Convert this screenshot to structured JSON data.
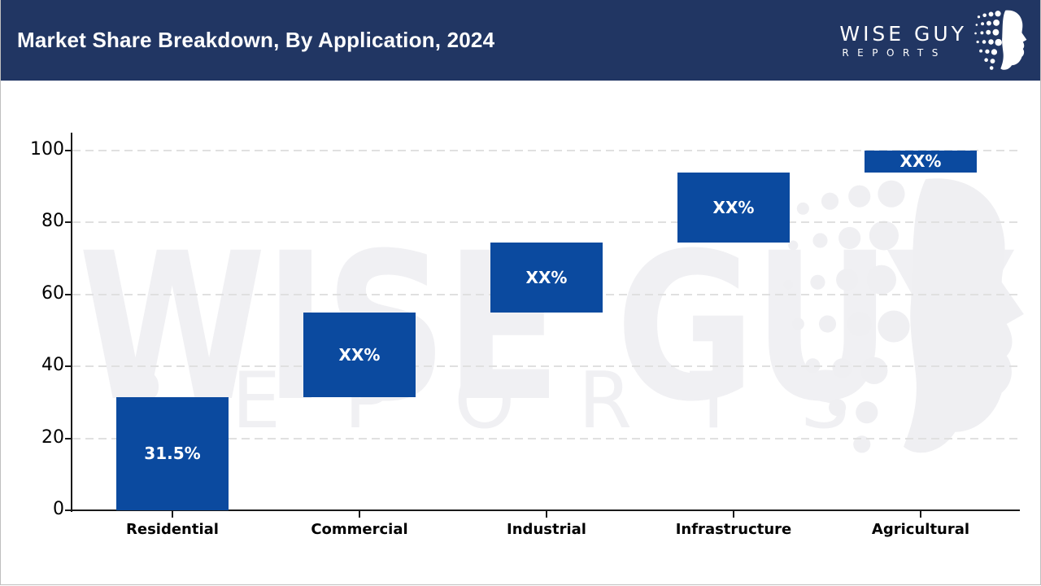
{
  "header": {
    "title": "Market Share Breakdown, By Application, 2024",
    "logo": {
      "wordmark": "WISE GUY",
      "subtext": "REPORTS"
    }
  },
  "watermark": {
    "wordmark": "WISE GUY",
    "subtext": "REPORTS"
  },
  "chart_data": {
    "type": "bar",
    "variant": "waterfall",
    "title": "Market Share Breakdown, By Application, 2024",
    "categories": [
      "Residential",
      "Commercial",
      "Industrial",
      "Infrastructure",
      "Agricultural"
    ],
    "segments": [
      {
        "category": "Residential",
        "start": 0,
        "end": 31.5,
        "label": "31.5%"
      },
      {
        "category": "Commercial",
        "start": 31.5,
        "end": 55,
        "label": "XX%"
      },
      {
        "category": "Industrial",
        "start": 55,
        "end": 74.5,
        "label": "XX%"
      },
      {
        "category": "Infrastructure",
        "start": 74.5,
        "end": 94,
        "label": "XX%"
      },
      {
        "category": "Agricultural",
        "start": 94,
        "end": 100,
        "label": "XX%"
      }
    ],
    "yticks": [
      0,
      20,
      40,
      60,
      80,
      100
    ],
    "ylim": [
      0,
      100
    ],
    "xlabel": "",
    "ylabel": "",
    "grid": "horizontal-dashed",
    "legend": "none",
    "colors": {
      "bar": "#0b4a9f",
      "bar_label_text": "#ffffff",
      "header_bg": "#213663",
      "header_text": "#ffffff",
      "gridline": "#e0e0e0",
      "axis": "#1a1a1a",
      "tick_label": "#000000",
      "watermark": "#f0f0f3",
      "background": "#ffffff"
    }
  }
}
